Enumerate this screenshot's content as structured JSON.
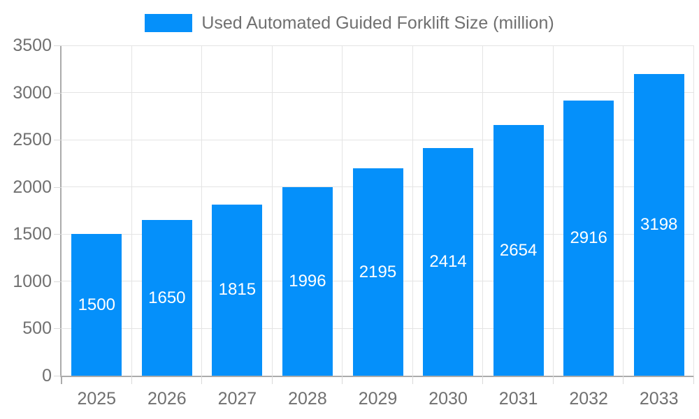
{
  "colors": {
    "bar": "#0590FA",
    "grid": "#E4E4E4",
    "axis": "#ABABAB",
    "tick": "#D9D9D9",
    "label_text": "#707070",
    "value_text": "#FFFFFF",
    "background": "#FFFFFF"
  },
  "legend": {
    "swatch_color": "#0590FA",
    "label": "Used Automated Guided Forklift Size (million)"
  },
  "chart_data": {
    "type": "bar",
    "title": "Used Automated Guided Forklift Size (million)",
    "categories": [
      "2025",
      "2026",
      "2027",
      "2028",
      "2029",
      "2030",
      "2031",
      "2032",
      "2033"
    ],
    "series": [
      {
        "name": "Used Automated Guided Forklift Size (million)",
        "values": [
          1500,
          1650,
          1815,
          1996,
          2195,
          2414,
          2654,
          2916,
          3198
        ]
      }
    ],
    "value_labels": [
      1500,
      1650,
      1815,
      1996,
      2195,
      2414,
      2654,
      2916,
      3198
    ],
    "xlabel": "",
    "ylabel": "",
    "ylim": [
      0,
      3500
    ],
    "yticks": [
      0,
      500,
      1000,
      1500,
      2000,
      2500,
      3000,
      3500
    ],
    "grid": true,
    "legend_position": "top",
    "value_label_position": "inside-center"
  }
}
